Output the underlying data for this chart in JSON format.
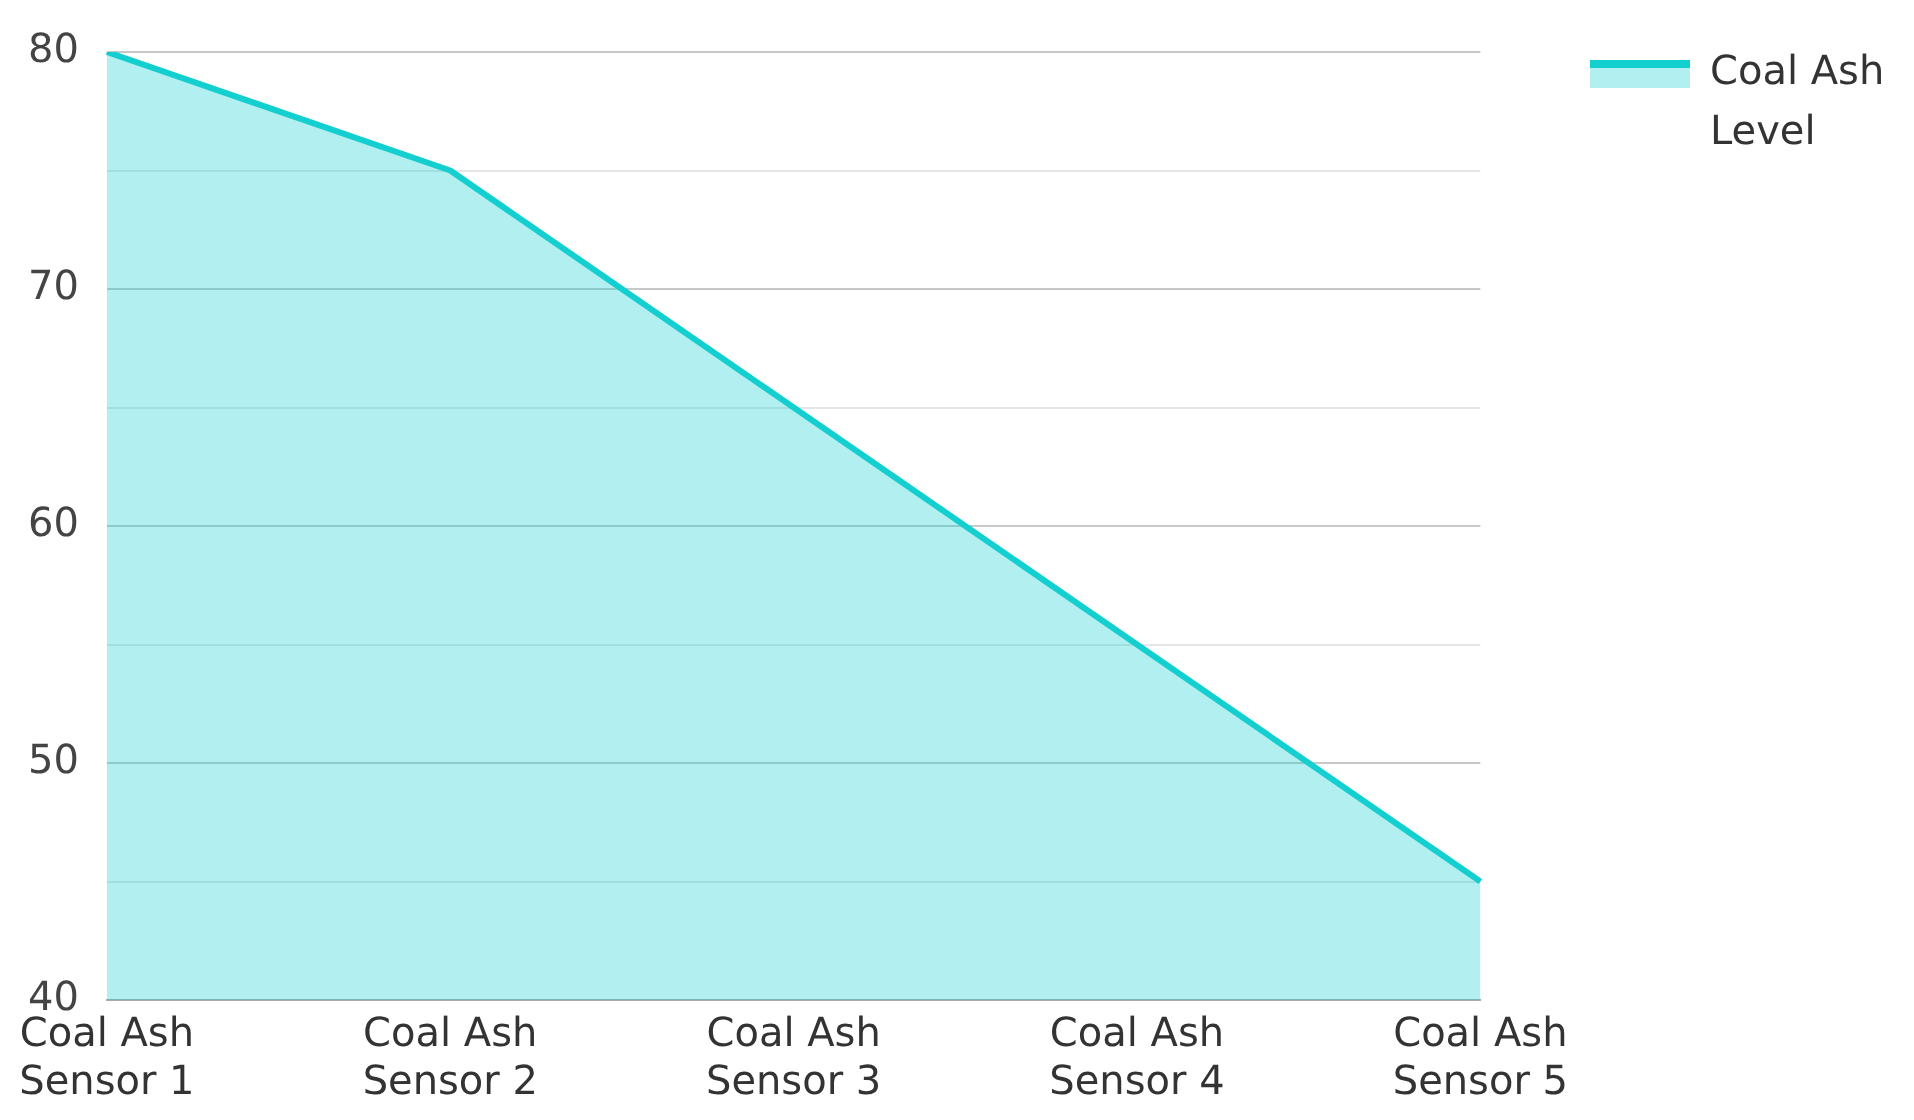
{
  "chart_data": {
    "type": "area",
    "categories": [
      "Coal Ash Sensor 1",
      "Coal Ash Sensor 2",
      "Coal Ash Sensor 3",
      "Coal Ash Sensor 4",
      "Coal Ash Sensor 5"
    ],
    "series": [
      {
        "name": "Coal Ash Level",
        "color": "#14cfd0",
        "values": [
          80,
          75,
          65,
          55,
          45
        ]
      }
    ],
    "ylim": [
      40,
      80
    ],
    "yticks": [
      40,
      {
        "value": 45,
        "label": null
      },
      50,
      {
        "value": 55,
        "label": null
      },
      60,
      {
        "value": 65,
        "label": null
      },
      70,
      {
        "value": 75,
        "label": null
      },
      80
    ],
    "grid": "y",
    "legend": "top right"
  }
}
